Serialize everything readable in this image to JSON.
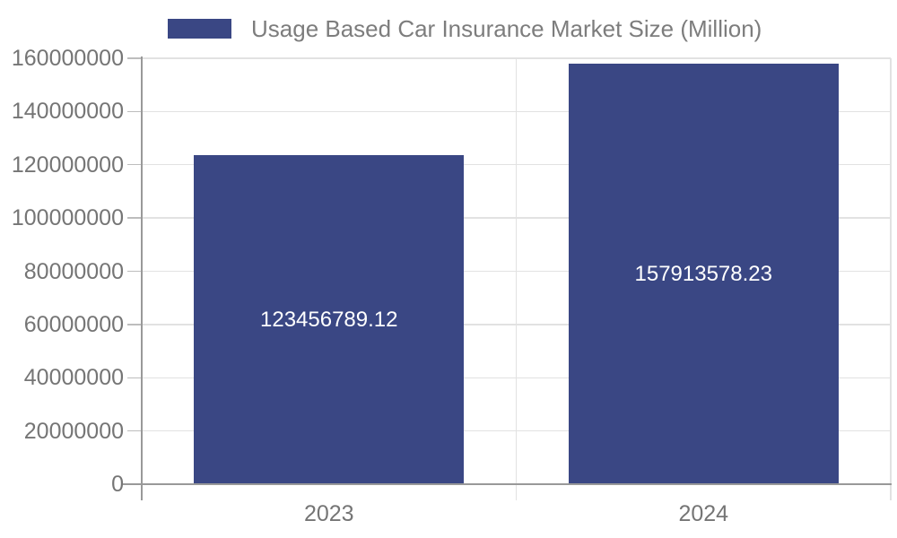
{
  "legend": {
    "label": "Usage Based Car Insurance Market Size (Million)",
    "swatch_color": "#3a4784"
  },
  "chart_data": {
    "type": "bar",
    "title": "Usage Based Car Insurance Market Size (Million)",
    "categories": [
      "2023",
      "2024"
    ],
    "values": [
      123456789.12,
      157913578.23
    ],
    "value_labels": [
      "123456789.12",
      "157913578.23"
    ],
    "ylim": [
      0,
      160000000
    ],
    "ytick_interval": 20000000,
    "ytick_labels": [
      "0",
      "20000000",
      "40000000",
      "60000000",
      "80000000",
      "100000000",
      "120000000",
      "140000000",
      "160000000"
    ],
    "xlabel": "",
    "ylabel": "",
    "grid": "horizontal gridlines on, vertical category separators on",
    "legend_position": "top",
    "colors": {
      "bar": "#3a4784",
      "value_label": "#ffffff",
      "axis_line": "#999999",
      "gridline": "#e2e2e2",
      "tick_mark": "#bdbdbd",
      "tick_text": "#757575",
      "legend_text": "#7d7d7d"
    }
  }
}
